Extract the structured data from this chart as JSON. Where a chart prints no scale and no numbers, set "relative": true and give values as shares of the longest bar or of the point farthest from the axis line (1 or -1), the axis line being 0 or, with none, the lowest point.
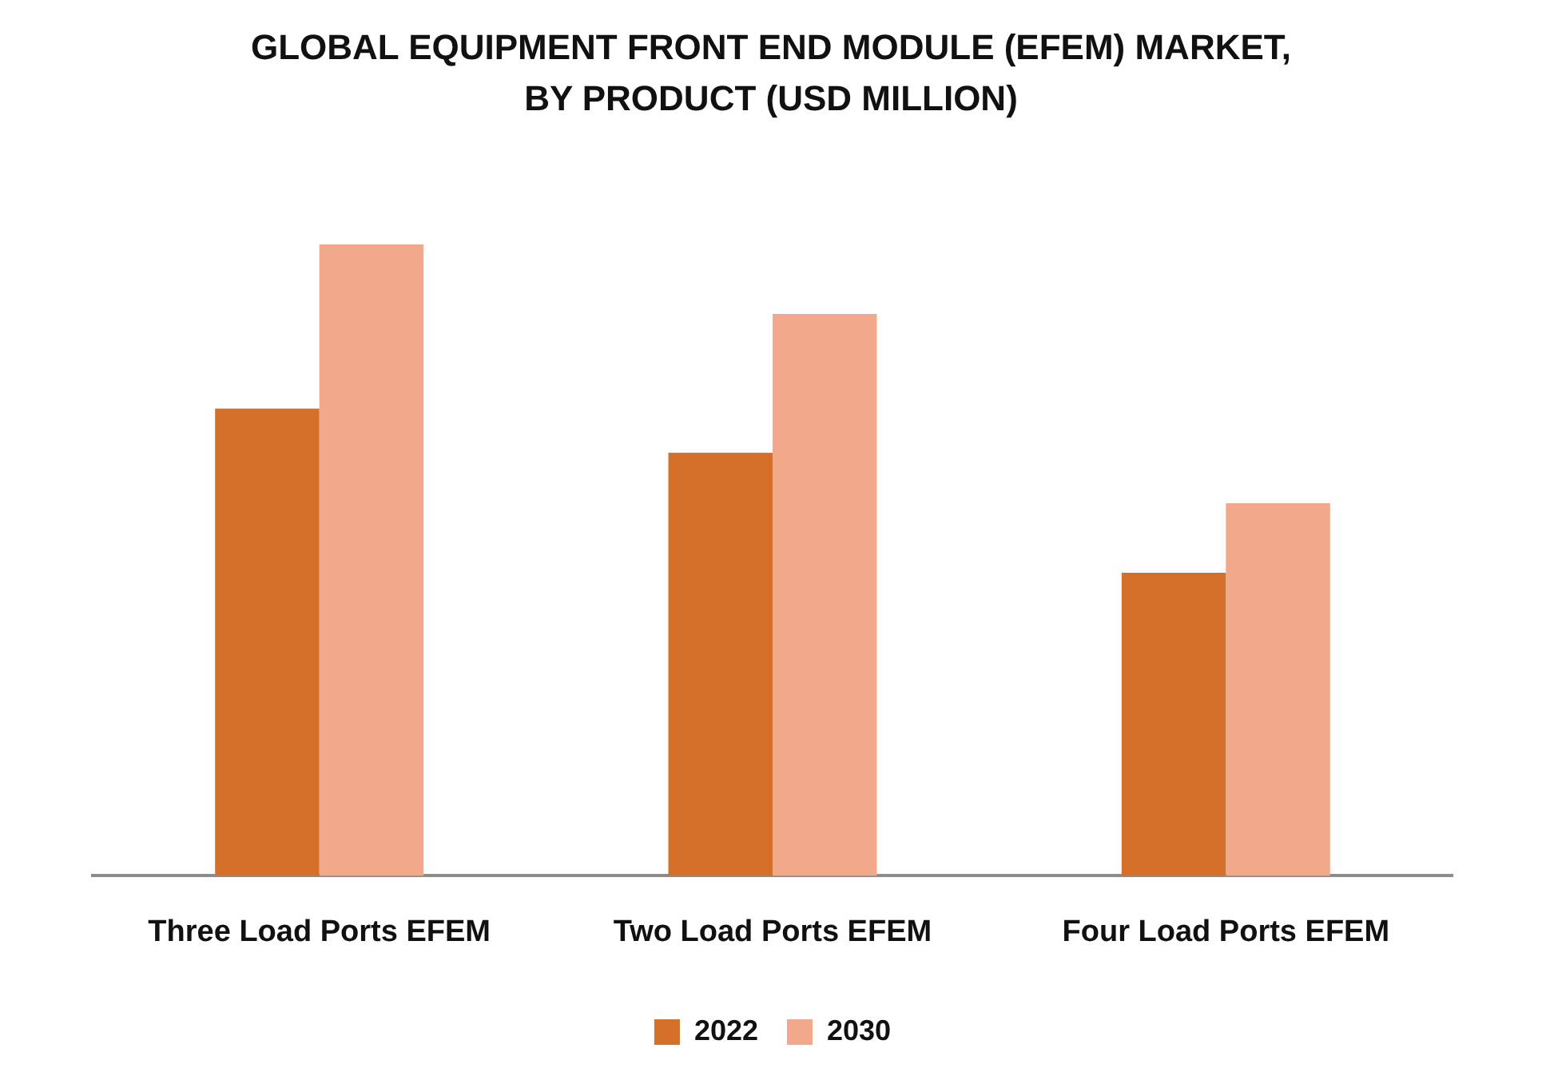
{
  "chart_data": {
    "type": "bar",
    "title": "GLOBAL EQUIPMENT FRONT END MODULE (EFEM) MARKET, BY PRODUCT (USD MILLION)",
    "categories": [
      "Three Load Ports EFEM",
      "Two Load Ports EFEM",
      "Four Load Ports EFEM"
    ],
    "series": [
      {
        "name": "2022",
        "color": "#d5702b",
        "values": [
          0.74,
          0.67,
          0.48
        ]
      },
      {
        "name": "2030",
        "color": "#f2a98b",
        "values": [
          1,
          0.89,
          0.59
        ]
      }
    ],
    "relative": true,
    "legend": "bottom",
    "grid": false
  }
}
